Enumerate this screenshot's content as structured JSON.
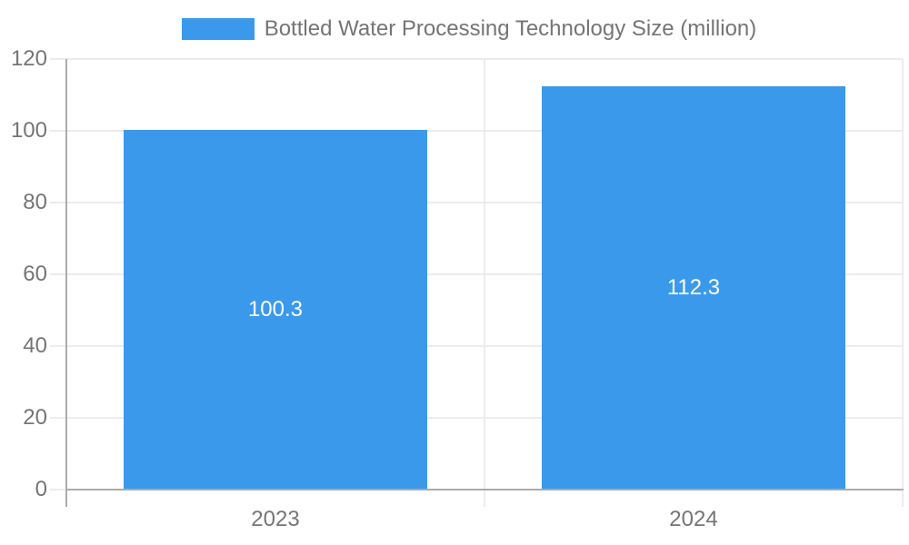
{
  "chart_data": {
    "type": "bar",
    "title": "Bottled Water Processing Technology Size (million)",
    "categories": [
      "2023",
      "2024"
    ],
    "series": [
      {
        "name": "Bottled Water Processing Technology Size (million)",
        "values": [
          100.3,
          112.3
        ]
      }
    ],
    "value_labels": [
      "100.3",
      "112.3"
    ],
    "ylim": [
      0,
      120
    ],
    "yticks": [
      0,
      20,
      40,
      60,
      80,
      100,
      120
    ],
    "grid": true,
    "legend_position": "top"
  },
  "legend": {
    "label": "Bottled Water Processing Technology Size (million)"
  },
  "colors": {
    "bar": "#3B99EB",
    "text": "#757575",
    "grid": "#ECECEC",
    "axis": "#ABABAB",
    "value_label": "#FFFFFF",
    "background": "#FFFFFF"
  }
}
